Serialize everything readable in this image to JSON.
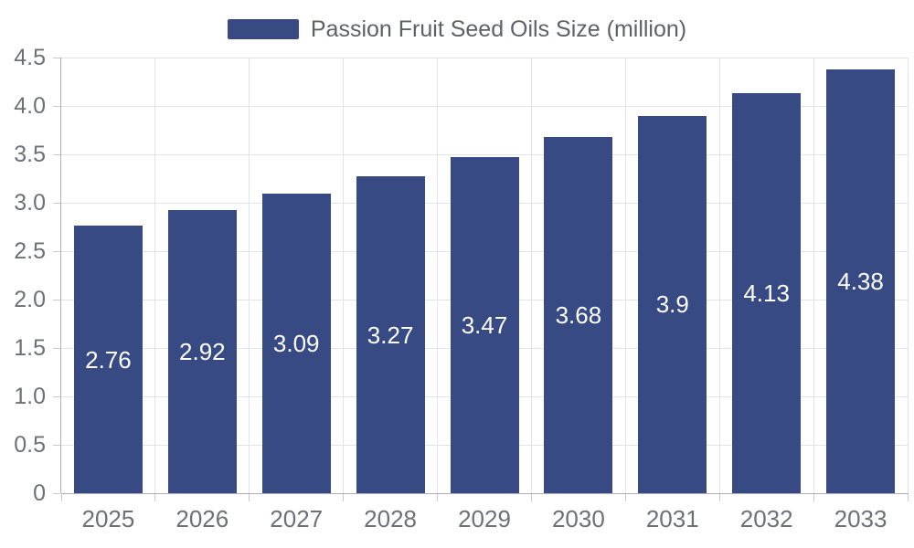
{
  "legend": {
    "items": [
      {
        "label": "Passion Fruit Seed Oils Size (million)"
      }
    ]
  },
  "chart_data": {
    "type": "bar",
    "title": "Passion Fruit Seed Oils Size (million)",
    "series_name": "Passion Fruit Seed Oils Size (million)",
    "categories": [
      "2025",
      "2026",
      "2027",
      "2028",
      "2029",
      "2030",
      "2031",
      "2032",
      "2033"
    ],
    "values": [
      2.76,
      2.92,
      3.09,
      3.27,
      3.47,
      3.68,
      3.9,
      4.13,
      4.38
    ],
    "bar_labels": [
      "2.76",
      "2.92",
      "3.09",
      "3.27",
      "3.47",
      "3.68",
      "3.9",
      "4.13",
      "4.38"
    ],
    "xlabel": "",
    "ylabel": "",
    "ylim": [
      0,
      4.5
    ],
    "ytick_labels": [
      "0",
      "0.5",
      "1.0",
      "1.5",
      "2.0",
      "2.5",
      "3.0",
      "3.5",
      "4.0",
      "4.5"
    ],
    "grid": true,
    "grid_vertical": true,
    "legend_position": "top-center",
    "bar_label_position": "inside-middle"
  },
  "colors": {
    "bar": "#374A83",
    "bar_label": "#FFFFFF",
    "axis_text": "#6E7079",
    "legend_text": "#5E6166",
    "grid_line": "#E0E3EA",
    "axis_line": "#ACAFB6",
    "tick": "#C6C9D0",
    "background": "#FFFFFF"
  }
}
